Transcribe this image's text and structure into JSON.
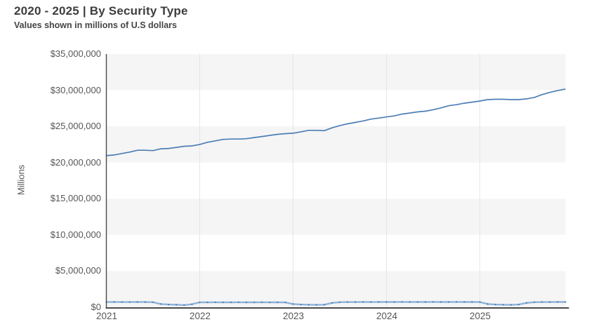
{
  "header": {
    "title": "2020 - 2025 | By Security Type",
    "subtitle": "Values shown in millions of U.S dollars"
  },
  "colors": {
    "series1_line": "#4d7eb5",
    "series2_line": "#8fb3da",
    "series2_marker": "#4c7cb0",
    "band_gray": "#f5f5f5",
    "grid_gray": "#e6e6e6",
    "axis_dark": "#4a4a4a",
    "title_text": "#3d3d3d",
    "tick_text": "#565656"
  },
  "chart": {
    "y_axis_title": "Millions",
    "y_tick_labels": [
      "$35,000,000",
      "$30,000,000",
      "$25,000,000",
      "$20,000,000",
      "$15,000,000",
      "$10,000,000",
      "$5,000,000",
      "$0"
    ],
    "x_tick_labels": [
      "2021",
      "2022",
      "2023",
      "2024",
      "2025"
    ]
  },
  "chart_data": {
    "type": "line",
    "title": "2020 - 2025 | By Security Type",
    "subtitle": "Values shown in millions of U.S dollars",
    "xlabel": "",
    "ylabel": "Millions",
    "ylim": [
      0,
      35000000
    ],
    "y_ticks": [
      0,
      5000000,
      10000000,
      15000000,
      20000000,
      25000000,
      30000000,
      35000000
    ],
    "x_ticks": [
      "2021",
      "2022",
      "2023",
      "2024",
      "2025"
    ],
    "grid": "horizontal-bands-and-year-gridlines",
    "legend": "none",
    "x": [
      "2021-01",
      "2021-02",
      "2021-03",
      "2021-04",
      "2021-05",
      "2021-06",
      "2021-07",
      "2021-08",
      "2021-09",
      "2021-10",
      "2021-11",
      "2021-12",
      "2022-01",
      "2022-02",
      "2022-03",
      "2022-04",
      "2022-05",
      "2022-06",
      "2022-07",
      "2022-08",
      "2022-09",
      "2022-10",
      "2022-11",
      "2022-12",
      "2023-01",
      "2023-02",
      "2023-03",
      "2023-04",
      "2023-05",
      "2023-06",
      "2023-07",
      "2023-08",
      "2023-09",
      "2023-10",
      "2023-11",
      "2023-12",
      "2024-01",
      "2024-02",
      "2024-03",
      "2024-04",
      "2024-05",
      "2024-06",
      "2024-07",
      "2024-08",
      "2024-09",
      "2024-10",
      "2024-11",
      "2024-12",
      "2025-01",
      "2025-02",
      "2025-03",
      "2025-04",
      "2025-05",
      "2025-06",
      "2025-07",
      "2025-08",
      "2025-09",
      "2025-10",
      "2025-11",
      "2025-12"
    ],
    "series": [
      {
        "name": "series_1_upper",
        "values": [
          20950000,
          21050000,
          21250000,
          21450000,
          21700000,
          21700000,
          21650000,
          21900000,
          21950000,
          22100000,
          22250000,
          22300000,
          22500000,
          22800000,
          23000000,
          23200000,
          23250000,
          23250000,
          23300000,
          23450000,
          23600000,
          23750000,
          23900000,
          24000000,
          24050000,
          24250000,
          24450000,
          24450000,
          24400000,
          24800000,
          25100000,
          25350000,
          25550000,
          25750000,
          26000000,
          26150000,
          26300000,
          26450000,
          26700000,
          26850000,
          27000000,
          27100000,
          27300000,
          27550000,
          27850000,
          28000000,
          28200000,
          28350000,
          28500000,
          28700000,
          28750000,
          28750000,
          28700000,
          28700000,
          28800000,
          29000000,
          29400000,
          29700000,
          29950000,
          30150000
        ]
      },
      {
        "name": "series_2_lower",
        "values": [
          720000,
          730000,
          720000,
          720000,
          730000,
          720000,
          700000,
          450000,
          380000,
          350000,
          300000,
          420000,
          680000,
          680000,
          690000,
          680000,
          680000,
          690000,
          680000,
          680000,
          690000,
          680000,
          680000,
          670000,
          450000,
          380000,
          350000,
          330000,
          350000,
          600000,
          700000,
          720000,
          720000,
          730000,
          720000,
          730000,
          730000,
          730000,
          740000,
          730000,
          730000,
          730000,
          740000,
          730000,
          730000,
          740000,
          730000,
          730000,
          720000,
          450000,
          380000,
          350000,
          330000,
          380000,
          600000,
          700000,
          720000,
          720000,
          730000,
          730000
        ]
      }
    ]
  }
}
